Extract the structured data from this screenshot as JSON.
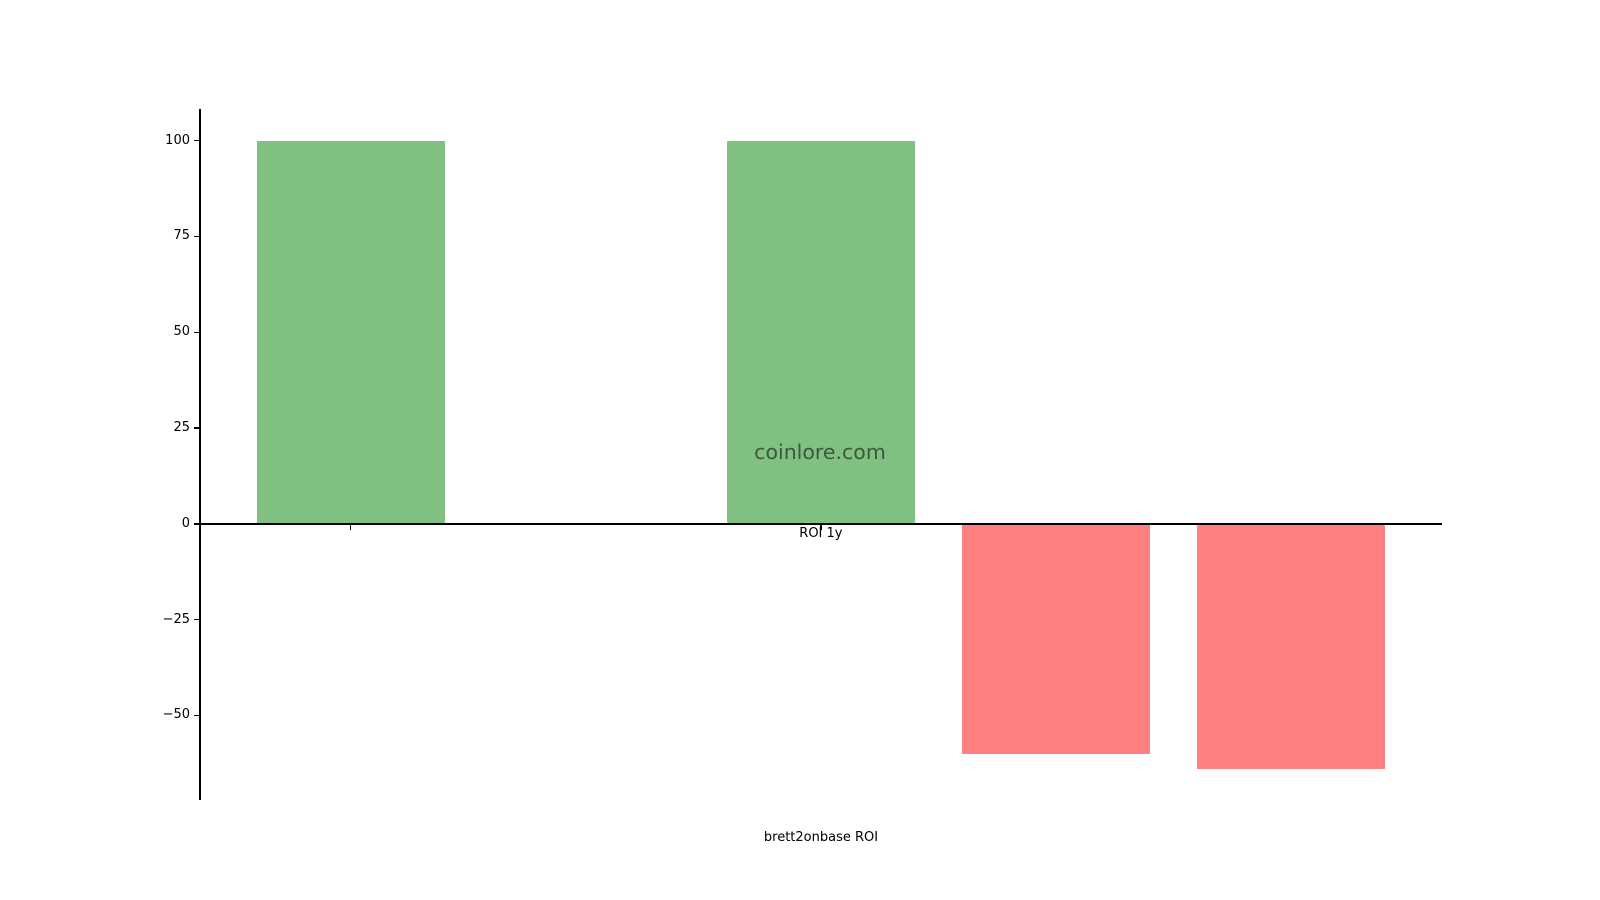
{
  "figure": {
    "background": "#ffffff",
    "watermark": "coinlore.com",
    "xlabel": "brett2onbase ROI"
  },
  "chart_data": {
    "type": "bar",
    "title": "",
    "xlabel": "brett2onbase ROI",
    "ylabel": "",
    "watermark": "coinlore.com",
    "x_positions": [
      0,
      2,
      3,
      4
    ],
    "values": [
      100,
      100,
      -60,
      -64
    ],
    "bar_colors": [
      "#80c080",
      "#80c080",
      "#ff8080",
      "#ff8080"
    ],
    "bar_width": 0.8,
    "x_ticks": [
      {
        "position": 0,
        "label": ""
      },
      {
        "position": 2,
        "label": "ROI 1y"
      }
    ],
    "y_tick_values": [
      100,
      75,
      50,
      25,
      0,
      -25,
      -50
    ],
    "y_tick_labels": [
      "100",
      "75",
      "50",
      "25",
      "0",
      "−25",
      "−50"
    ],
    "ylim": [
      -72.2,
      108.2
    ],
    "xlim": [
      -0.64,
      4.64
    ],
    "grid": false,
    "legend": null,
    "axis_color": "#000000",
    "positive_color": "#80c080",
    "negative_color": "#ff8080"
  }
}
